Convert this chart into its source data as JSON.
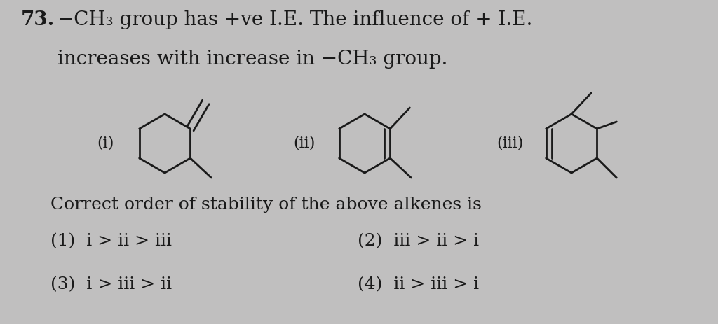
{
  "bg_color": "#c0bfbf",
  "title_number": "73.",
  "line1": "−CH₃ group has +ve I.E. The influence of + I.E.",
  "line2": "increases with increase in −CH₃ group.",
  "question_text": "Correct order of stability of the above alkenes is",
  "options": [
    "(1)  i > ii > iii",
    "(2)  iii > ii > i",
    "(3)  i > iii > ii",
    "(4)  ii > iii > i"
  ],
  "labels_roman": [
    "(i)",
    "(ii)",
    "(iii)"
  ],
  "text_color": "#1a1a1a",
  "font_size_main": 20,
  "font_size_options": 18,
  "font_size_label": 16
}
